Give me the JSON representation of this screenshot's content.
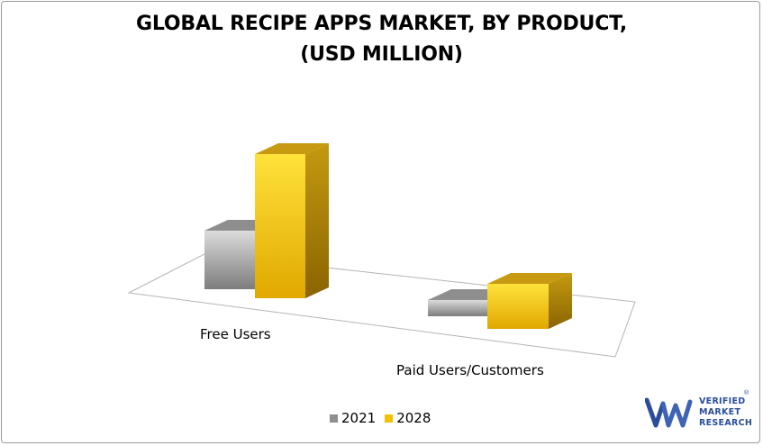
{
  "chart_data": {
    "type": "bar",
    "title_line1": "GLOBAL RECIPE APPS MARKET, BY PRODUCT,",
    "title_line2": "(USD MILLION)",
    "categories": [
      "Free Users",
      "Paid Users/Customers"
    ],
    "series": [
      {
        "name": "2021",
        "values": [
          65,
          18
        ]
      },
      {
        "name": "2028",
        "values": [
          160,
          50
        ]
      }
    ],
    "colors": {
      "2021": "#9e9e9e",
      "2028": "#f2c200"
    },
    "legend_position": "bottom",
    "style": "3d"
  },
  "logo": {
    "line1": "VERIFIED",
    "line2": "MARKET",
    "line3": "RESEARCH",
    "mark": "®"
  }
}
